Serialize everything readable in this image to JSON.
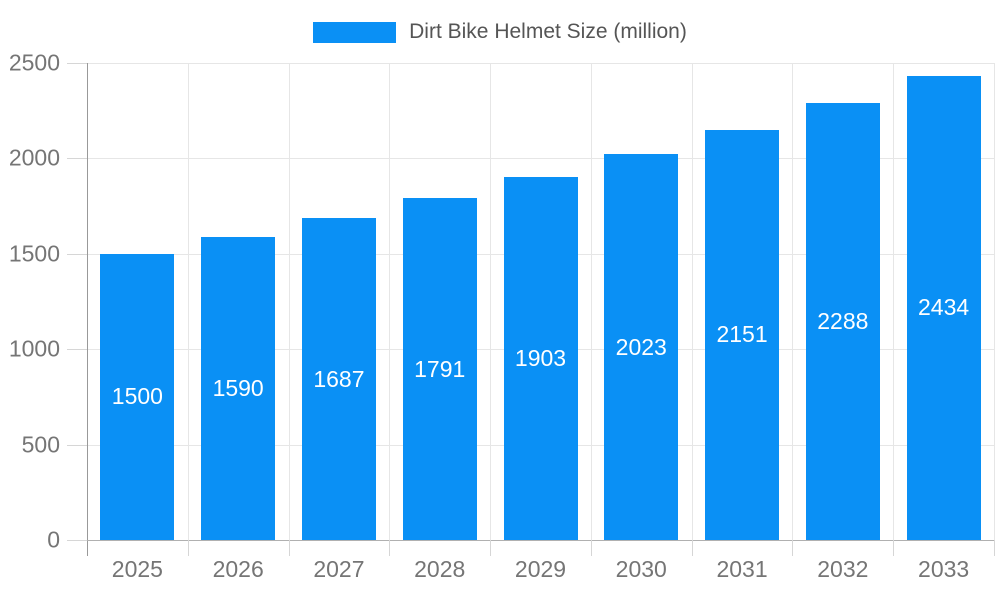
{
  "legend": {
    "label": "Dirt Bike Helmet Size (million)",
    "swatch_color": "#0a90f5"
  },
  "chart_data": {
    "type": "bar",
    "title": "Dirt Bike Helmet Size (million)",
    "categories": [
      "2025",
      "2026",
      "2027",
      "2028",
      "2029",
      "2030",
      "2031",
      "2032",
      "2033"
    ],
    "values": [
      1500,
      1590,
      1687,
      1791,
      1903,
      2023,
      2151,
      2288,
      2434
    ],
    "xlabel": "",
    "ylabel": "",
    "ylim": [
      0,
      2500
    ],
    "yticks": [
      0,
      500,
      1000,
      1500,
      2000,
      2500
    ],
    "bar_color": "#0a90f5",
    "value_label_color": "#ffffff",
    "axis_label_color": "#757575",
    "grid": true,
    "gridline_color": "#e6e6e6",
    "legend_position": "top"
  }
}
